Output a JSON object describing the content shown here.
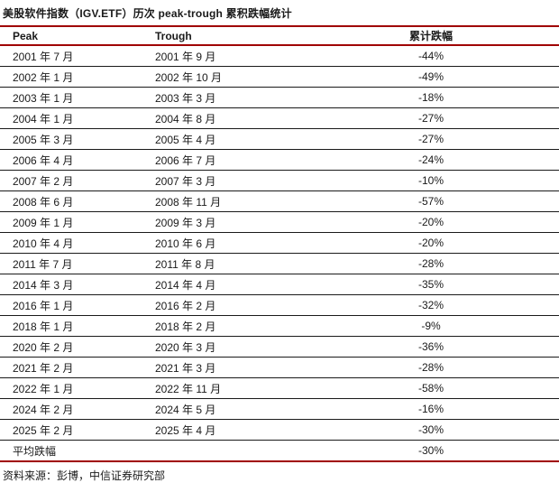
{
  "title": "美股软件指数（IGV.ETF）历次 peak-trough 累积跌幅统计",
  "table": {
    "columns": {
      "peak": "Peak",
      "trough": "Trough",
      "drawdown": "累计跌幅"
    },
    "rows": [
      {
        "peak": "2001 年 7 月",
        "trough": "2001 年 9 月",
        "drawdown": "-44%"
      },
      {
        "peak": "2002 年 1 月",
        "trough": "2002 年 10 月",
        "drawdown": "-49%"
      },
      {
        "peak": "2003 年 1 月",
        "trough": "2003 年 3 月",
        "drawdown": "-18%"
      },
      {
        "peak": "2004 年 1 月",
        "trough": "2004 年 8 月",
        "drawdown": "-27%"
      },
      {
        "peak": "2005 年 3 月",
        "trough": "2005 年 4 月",
        "drawdown": "-27%"
      },
      {
        "peak": "2006 年 4 月",
        "trough": "2006 年 7 月",
        "drawdown": "-24%"
      },
      {
        "peak": "2007 年 2 月",
        "trough": "2007 年 3 月",
        "drawdown": "-10%"
      },
      {
        "peak": "2008 年 6 月",
        "trough": "2008 年 11 月",
        "drawdown": "-57%"
      },
      {
        "peak": "2009 年 1 月",
        "trough": "2009 年 3 月",
        "drawdown": "-20%"
      },
      {
        "peak": "2010 年 4 月",
        "trough": "2010 年 6 月",
        "drawdown": "-20%"
      },
      {
        "peak": "2011 年 7 月",
        "trough": "2011 年 8 月",
        "drawdown": "-28%"
      },
      {
        "peak": "2014 年 3 月",
        "trough": "2014 年 4 月",
        "drawdown": "-35%"
      },
      {
        "peak": "2016 年 1 月",
        "trough": "2016 年 2 月",
        "drawdown": "-32%"
      },
      {
        "peak": "2018 年 1 月",
        "trough": "2018 年 2 月",
        "drawdown": "-9%"
      },
      {
        "peak": "2020 年 2 月",
        "trough": "2020 年 3 月",
        "drawdown": "-36%"
      },
      {
        "peak": "2021 年 2 月",
        "trough": "2021 年 3 月",
        "drawdown": "-28%"
      },
      {
        "peak": "2022 年 1 月",
        "trough": "2022 年 11 月",
        "drawdown": "-58%"
      },
      {
        "peak": "2024 年 2 月",
        "trough": "2024 年 5 月",
        "drawdown": "-16%"
      },
      {
        "peak": "2025 年 2 月",
        "trough": "2025 年 4 月",
        "drawdown": "-30%"
      }
    ],
    "summary": {
      "label": "平均跌幅",
      "value": "-30%"
    }
  },
  "source": "资料来源：彭博，中信证券研究部",
  "colors": {
    "accent_red": "#a00000",
    "rule_black": "#1a1a1a",
    "text": "#1a1a1a",
    "background": "#ffffff"
  }
}
